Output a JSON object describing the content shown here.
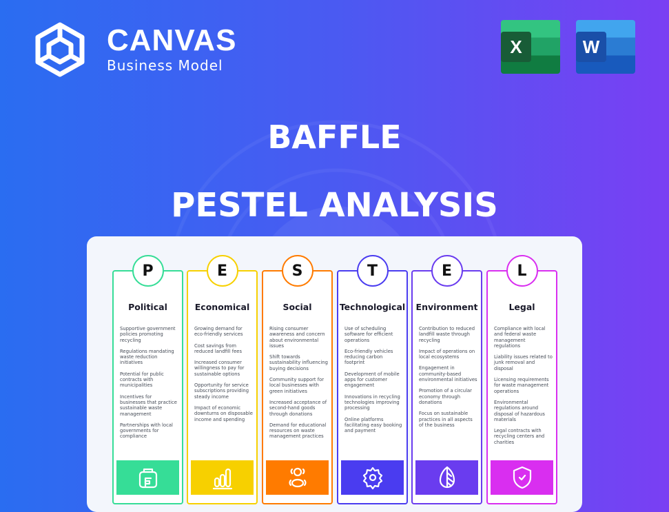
{
  "brand": {
    "name": "CANVAS",
    "subtitle": "Business Model"
  },
  "apps": [
    {
      "letter": "X",
      "name": "excel",
      "color": "#1d7a43"
    },
    {
      "letter": "W",
      "name": "word",
      "color": "#1f5bbf"
    }
  ],
  "heading": {
    "company": "BAFFLE",
    "analysis": "PESTEL ANALYSIS"
  },
  "columns": [
    {
      "letter": "P",
      "title": "Political",
      "color": "#36dd97",
      "icon": "briefcase-icon",
      "items": [
        "Supportive government policies promoting recycling",
        "Regulations mandating waste reduction initiatives",
        "Potential for public contracts with municipalities",
        "Incentives for businesses that practice sustainable waste management",
        "Partnerships with local governments for compliance"
      ]
    },
    {
      "letter": "E",
      "title": "Economical",
      "color": "#f7d000",
      "icon": "bar-chart-icon",
      "items": [
        "Growing demand for eco-friendly services",
        "Cost savings from reduced landfill fees",
        "Increased consumer willingness to pay for sustainable options",
        "Opportunity for service subscriptions providing steady income",
        "Impact of economic downturns on disposable income and spending"
      ]
    },
    {
      "letter": "S",
      "title": "Social",
      "color": "#ff7b00",
      "icon": "people-icon",
      "items": [
        "Rising consumer awareness and concern about environmental issues",
        "Shift towards sustainability influencing buying decisions",
        "Community support for local businesses with green initiatives",
        "Increased acceptance of second-hand goods through donations",
        "Demand for educational resources on waste management practices"
      ]
    },
    {
      "letter": "T",
      "title": "Technological",
      "color": "#4a3cf0",
      "icon": "gear-icon",
      "items": [
        "Use of scheduling software for efficient operations",
        "Eco-friendly vehicles reducing carbon footprint",
        "Development of mobile apps for customer engagement",
        "Innovations in recycling technologies improving processing",
        "Online platforms facilitating easy booking and payment"
      ]
    },
    {
      "letter": "E",
      "title": "Environment",
      "color": "#6a3cef",
      "icon": "leaf-icon",
      "items": [
        "Contribution to reduced landfill waste through recycling",
        "Impact of operations on local ecosystems",
        "Engagement in community-based environmental initiatives",
        "Promotion of a circular economy through donations",
        "Focus on sustainable practices in all aspects of the business"
      ]
    },
    {
      "letter": "L",
      "title": "Legal",
      "color": "#d92ef0",
      "icon": "shield-check-icon",
      "items": [
        "Compliance with local and federal waste management regulations",
        "Liability issues related to junk removal and disposal",
        "Licensing requirements for waste management operations",
        "Environmental regulations around disposal of hazardous materials",
        "Legal contracts with recycling centers and charities"
      ]
    }
  ]
}
